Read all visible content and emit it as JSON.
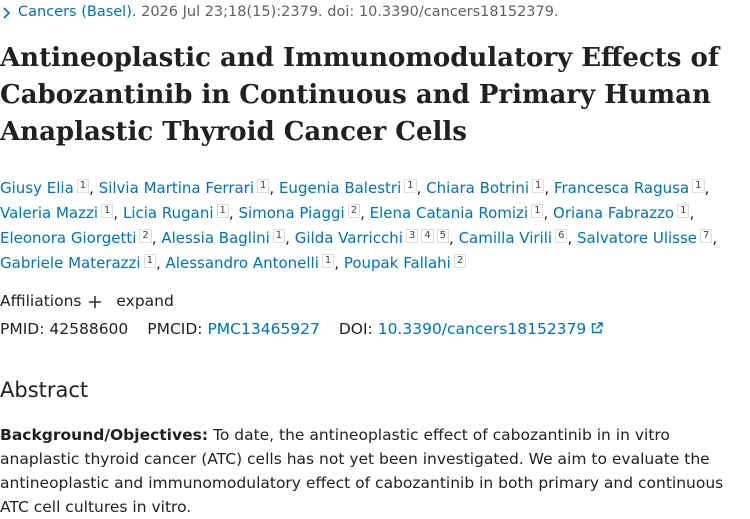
{
  "citation": {
    "journal": "Cancers (Basel).",
    "details": "2026 Jul 23;18(15):2379. doi: 10.3390/cancers18152379."
  },
  "title": "Antineoplastic and Immunomodulatory Effects of Cabozantinib in Continuous and Primary Human Anaplastic Thyroid Cancer Cells",
  "separator": ",",
  "authors": [
    {
      "name": "Giusy Elia",
      "affiliations": [
        "1"
      ]
    },
    {
      "name": "Silvia Martina Ferrari",
      "affiliations": [
        "1"
      ]
    },
    {
      "name": "Eugenia Balestri",
      "affiliations": [
        "1"
      ]
    },
    {
      "name": "Chiara Botrini",
      "affiliations": [
        "1"
      ]
    },
    {
      "name": "Francesca Ragusa",
      "affiliations": [
        "1"
      ]
    },
    {
      "name": "Valeria Mazzi",
      "affiliations": [
        "1"
      ]
    },
    {
      "name": "Licia Rugani",
      "affiliations": [
        "1"
      ]
    },
    {
      "name": "Simona Piaggi",
      "affiliations": [
        "2"
      ]
    },
    {
      "name": "Elena Catania Romizi",
      "affiliations": [
        "1"
      ]
    },
    {
      "name": "Oriana Fabrazzo",
      "affiliations": [
        "1"
      ]
    },
    {
      "name": "Eleonora Giorgetti",
      "affiliations": [
        "2"
      ]
    },
    {
      "name": "Alessia Baglini",
      "affiliations": [
        "1"
      ]
    },
    {
      "name": "Gilda Varricchi",
      "affiliations": [
        "3",
        "4",
        "5"
      ]
    },
    {
      "name": "Camilla Virili",
      "affiliations": [
        "6"
      ]
    },
    {
      "name": "Salvatore Ulisse",
      "affiliations": [
        "7"
      ]
    },
    {
      "name": "Gabriele Materazzi",
      "affiliations": [
        "1"
      ]
    },
    {
      "name": "Alessandro Antonelli",
      "affiliations": [
        "1"
      ]
    },
    {
      "name": "Poupak Fallahi",
      "affiliations": [
        "2"
      ]
    }
  ],
  "affiliations_toggle": {
    "label": "Affiliations",
    "action": "expand"
  },
  "identifiers": {
    "pmid_label": "PMID:",
    "pmid": "42588600",
    "pmcid_label": "PMCID:",
    "pmcid": "PMC13465927",
    "doi_label": "DOI:",
    "doi": "10.3390/cancers18152379"
  },
  "abstract": {
    "heading": "Abstract",
    "label": "Background/Objectives:",
    "text": "To date, the antineoplastic effect of cabozantinib in in vitro anaplastic thyroid cancer (ATC) cells has not yet been investigated. We aim to evaluate the antineoplastic and immunomodulatory effect of cabozantinib in both primary and continuous ATC cell cultures in vitro."
  }
}
